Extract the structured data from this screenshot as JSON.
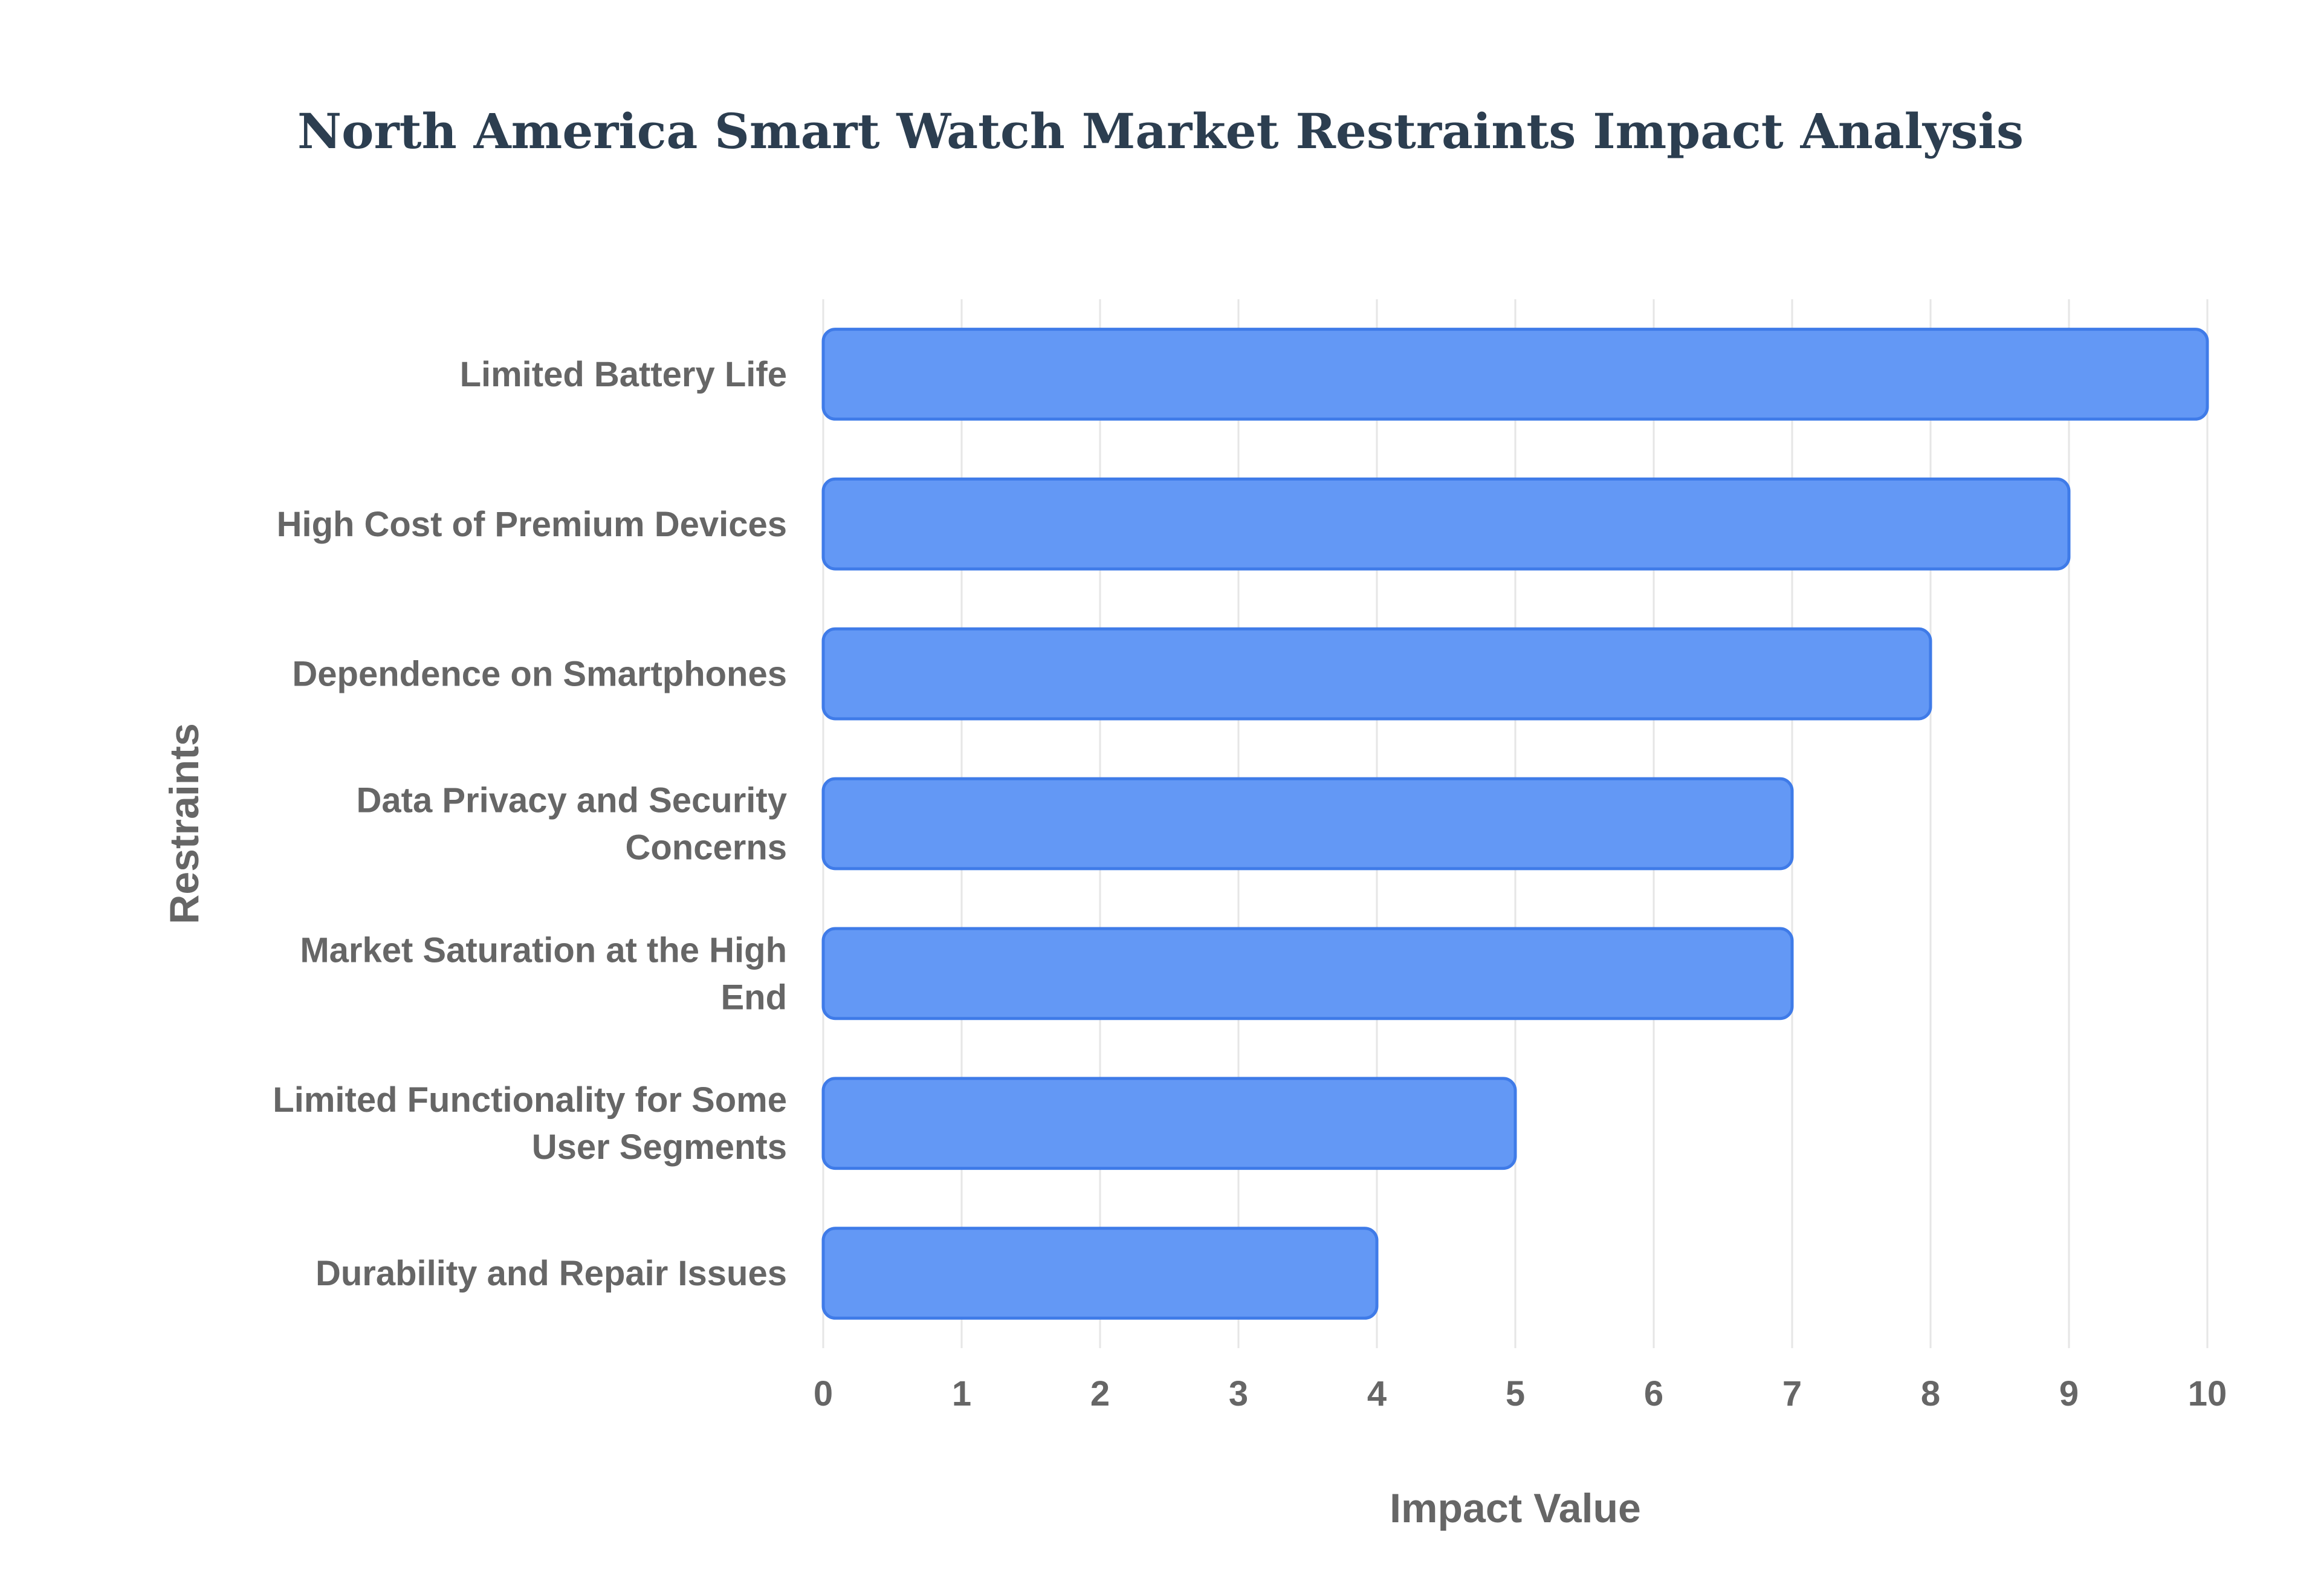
{
  "chart_data": {
    "type": "bar",
    "orientation": "horizontal",
    "title": "North America Smart Watch Market Restraints Impact Analysis",
    "xlabel": "Impact Value",
    "ylabel": "Restraints",
    "xlim": [
      0,
      10
    ],
    "xticks": [
      "0",
      "1",
      "2",
      "3",
      "4",
      "5",
      "6",
      "7",
      "8",
      "9",
      "10"
    ],
    "grid": true,
    "legend": "none",
    "categories": [
      [
        "Limited Battery Life"
      ],
      [
        "High Cost of Premium Devices"
      ],
      [
        "Dependence on Smartphones"
      ],
      [
        "Data Privacy and Security",
        "Concerns"
      ],
      [
        "Market Saturation at the High",
        "End"
      ],
      [
        "Limited Functionality for Some",
        "User Segments"
      ],
      [
        "Durability and Repair Issues"
      ]
    ],
    "values": [
      10,
      9,
      8,
      7,
      7,
      5,
      4
    ],
    "bar_color": "#6398f5",
    "bar_edge_color": "#3f7be8"
  }
}
